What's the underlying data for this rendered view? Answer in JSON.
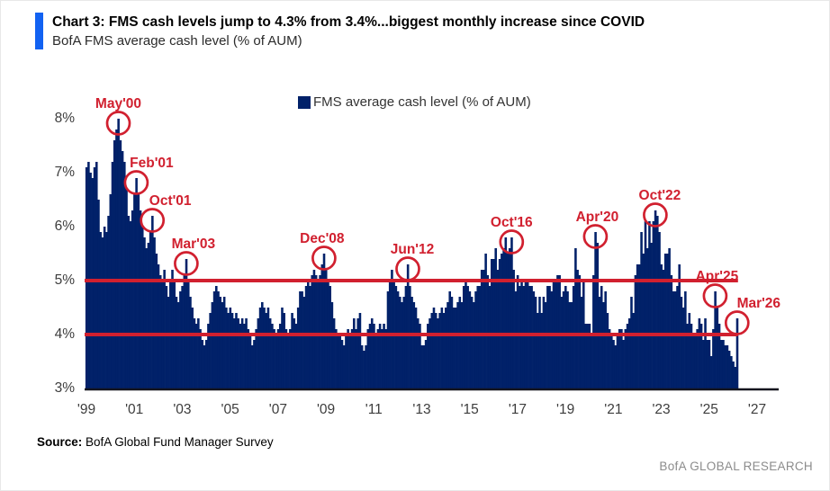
{
  "header": {
    "title": "Chart 3: FMS cash levels jump to 4.3% from 3.4%...biggest monthly increase since COVID",
    "subtitle": "BofA FMS average cash level (% of AUM)"
  },
  "legend": {
    "label": "FMS average cash level (% of AUM)"
  },
  "footer": {
    "source_label": "Source:",
    "source_text": " BofA Global Fund Manager Survey",
    "brand": "BofA GLOBAL RESEARCH"
  },
  "colors": {
    "bar_navy": "#012169",
    "annotation_red": "#d1202f",
    "accent_blue": "#1262f2",
    "axis_text": "#3d3d3d",
    "brand_gray": "#8c8c8c"
  },
  "chart_data": {
    "type": "bar",
    "title": "FMS average cash level (% of AUM)",
    "ylabel": "% of AUM",
    "ylim": [
      3,
      8
    ],
    "y_tick_labels": [
      "3%",
      "4%",
      "5%",
      "6%",
      "7%",
      "8%"
    ],
    "x_tick_labels": [
      "'99",
      "'01",
      "'03",
      "'05",
      "'07",
      "'09",
      "'11",
      "'13",
      "'15",
      "'17",
      "'19",
      "'21",
      "'23",
      "'25",
      "'27"
    ],
    "grid": "off",
    "legend_position": "top-center",
    "reference_lines": [
      {
        "value": 5
      },
      {
        "value": 4
      }
    ],
    "x_start": "1999-01",
    "x_end": "2026-03",
    "values_by_year": {
      "1999": [
        7.1,
        7.2,
        7.0,
        6.9,
        7.1,
        7.2,
        6.5,
        5.9,
        5.8,
        6.0,
        5.9,
        6.2
      ],
      "2000": [
        6.6,
        7.2,
        7.6,
        7.8,
        8.0,
        7.6,
        7.4,
        7.2,
        6.7,
        6.2,
        6.1,
        6.3
      ],
      "2001": [
        6.6,
        6.9,
        6.6,
        6.3,
        6.0,
        5.8,
        5.6,
        5.7,
        5.9,
        6.2,
        5.8,
        5.5
      ],
      "2002": [
        5.3,
        5.1,
        5.0,
        5.2,
        4.9,
        4.7,
        5.0,
        5.2,
        5.0,
        4.7,
        4.6,
        4.8
      ],
      "2003": [
        4.9,
        5.1,
        5.4,
        5.0,
        4.7,
        4.5,
        4.3,
        4.2,
        4.3,
        4.1,
        3.9,
        3.8
      ],
      "2004": [
        3.9,
        4.2,
        4.4,
        4.6,
        4.8,
        4.9,
        4.8,
        4.7,
        4.6,
        4.7,
        4.5,
        4.4
      ],
      "2005": [
        4.5,
        4.4,
        4.3,
        4.4,
        4.3,
        4.2,
        4.3,
        4.2,
        4.3,
        4.1,
        4.0,
        3.8
      ],
      "2006": [
        3.9,
        4.1,
        4.3,
        4.5,
        4.6,
        4.5,
        4.4,
        4.5,
        4.3,
        4.2,
        4.1,
        4.0
      ],
      "2007": [
        4.1,
        4.2,
        4.5,
        4.4,
        4.1,
        4.0,
        4.1,
        4.4,
        4.3,
        4.2,
        4.5,
        4.8
      ],
      "2008": [
        4.8,
        4.7,
        4.9,
        5.0,
        4.9,
        5.1,
        5.2,
        5.1,
        5.0,
        5.1,
        5.3,
        5.5
      ],
      "2009": [
        5.2,
        5.0,
        4.9,
        4.6,
        4.3,
        4.1,
        4.0,
        4.0,
        3.9,
        3.8,
        4.0,
        4.1
      ],
      "2010": [
        4.0,
        4.1,
        4.3,
        4.1,
        4.3,
        4.4,
        3.8,
        3.7,
        3.8,
        4.1,
        4.2,
        4.3
      ],
      "2011": [
        4.2,
        4.0,
        4.1,
        4.2,
        4.1,
        4.2,
        4.1,
        4.8,
        5.0,
        5.2,
        5.0,
        4.9
      ],
      "2012": [
        4.8,
        4.7,
        4.6,
        4.7,
        4.9,
        5.3,
        4.9,
        4.7,
        4.6,
        4.5,
        4.3,
        4.2
      ],
      "2013": [
        3.8,
        3.8,
        3.9,
        4.2,
        4.3,
        4.4,
        4.5,
        4.4,
        4.3,
        4.4,
        4.5,
        4.4
      ],
      "2014": [
        4.5,
        4.6,
        4.8,
        4.7,
        4.5,
        4.5,
        4.6,
        4.7,
        4.6,
        4.9,
        5.0,
        4.9
      ],
      "2015": [
        4.8,
        4.7,
        4.6,
        4.8,
        4.9,
        4.9,
        5.2,
        5.2,
        5.5,
        5.1,
        4.9,
        5.4
      ],
      "2016": [
        5.4,
        5.6,
        5.2,
        5.4,
        5.5,
        5.6,
        5.8,
        5.5,
        5.6,
        5.8,
        5.2,
        4.8
      ],
      "2017": [
        5.1,
        4.9,
        5.0,
        4.9,
        5.0,
        5.0,
        4.9,
        4.9,
        4.8,
        4.7,
        4.4,
        4.7
      ],
      "2018": [
        4.4,
        4.7,
        4.6,
        4.9,
        4.9,
        4.8,
        5.0,
        5.0,
        5.1,
        5.1,
        4.7,
        4.8
      ],
      "2019": [
        4.9,
        4.8,
        4.6,
        4.6,
        4.9,
        5.6,
        5.2,
        5.1,
        4.7,
        5.0,
        4.2,
        4.2
      ],
      "2020": [
        4.2,
        4.0,
        5.1,
        5.9,
        5.7,
        4.7,
        4.9,
        4.6,
        4.8,
        4.4,
        4.1,
        4.0
      ],
      "2021": [
        3.9,
        3.8,
        4.0,
        4.1,
        4.1,
        3.9,
        4.1,
        4.2,
        4.3,
        4.7,
        4.4,
        5.1
      ],
      "2022": [
        5.3,
        5.3,
        5.9,
        5.5,
        6.1,
        5.6,
        6.1,
        5.7,
        6.1,
        6.3,
        6.2,
        5.9
      ],
      "2023": [
        5.3,
        5.2,
        5.5,
        5.5,
        5.6,
        5.1,
        4.8,
        4.8,
        4.9,
        5.3,
        4.7,
        4.5
      ],
      "2024": [
        4.8,
        4.2,
        4.4,
        4.2,
        4.0,
        4.0,
        4.1,
        4.3,
        4.2,
        3.9,
        4.3,
        3.9
      ],
      "2025": [
        3.9,
        3.6,
        4.1,
        4.8,
        4.5,
        4.2,
        3.9,
        3.9,
        3.8,
        3.8,
        3.7,
        3.6
      ],
      "2026": [
        3.5,
        3.4,
        4.3
      ]
    },
    "annotations": [
      {
        "label": "May'00",
        "year": 2000,
        "month": 5,
        "value": 8.0
      },
      {
        "label": "Feb'01",
        "year": 2001,
        "month": 2,
        "value": 6.9
      },
      {
        "label": "Oct'01",
        "year": 2001,
        "month": 10,
        "value": 6.2
      },
      {
        "label": "Mar'03",
        "year": 2003,
        "month": 3,
        "value": 5.4
      },
      {
        "label": "Dec'08",
        "year": 2008,
        "month": 12,
        "value": 5.5
      },
      {
        "label": "Jun'12",
        "year": 2012,
        "month": 6,
        "value": 5.3
      },
      {
        "label": "Oct'16",
        "year": 2016,
        "month": 10,
        "value": 5.8
      },
      {
        "label": "Apr'20",
        "year": 2020,
        "month": 4,
        "value": 5.9
      },
      {
        "label": "Oct'22",
        "year": 2022,
        "month": 10,
        "value": 6.3
      },
      {
        "label": "Apr'25",
        "year": 2025,
        "month": 4,
        "value": 4.8
      },
      {
        "label": "Mar'26",
        "year": 2026,
        "month": 3,
        "value": 4.3
      }
    ]
  }
}
